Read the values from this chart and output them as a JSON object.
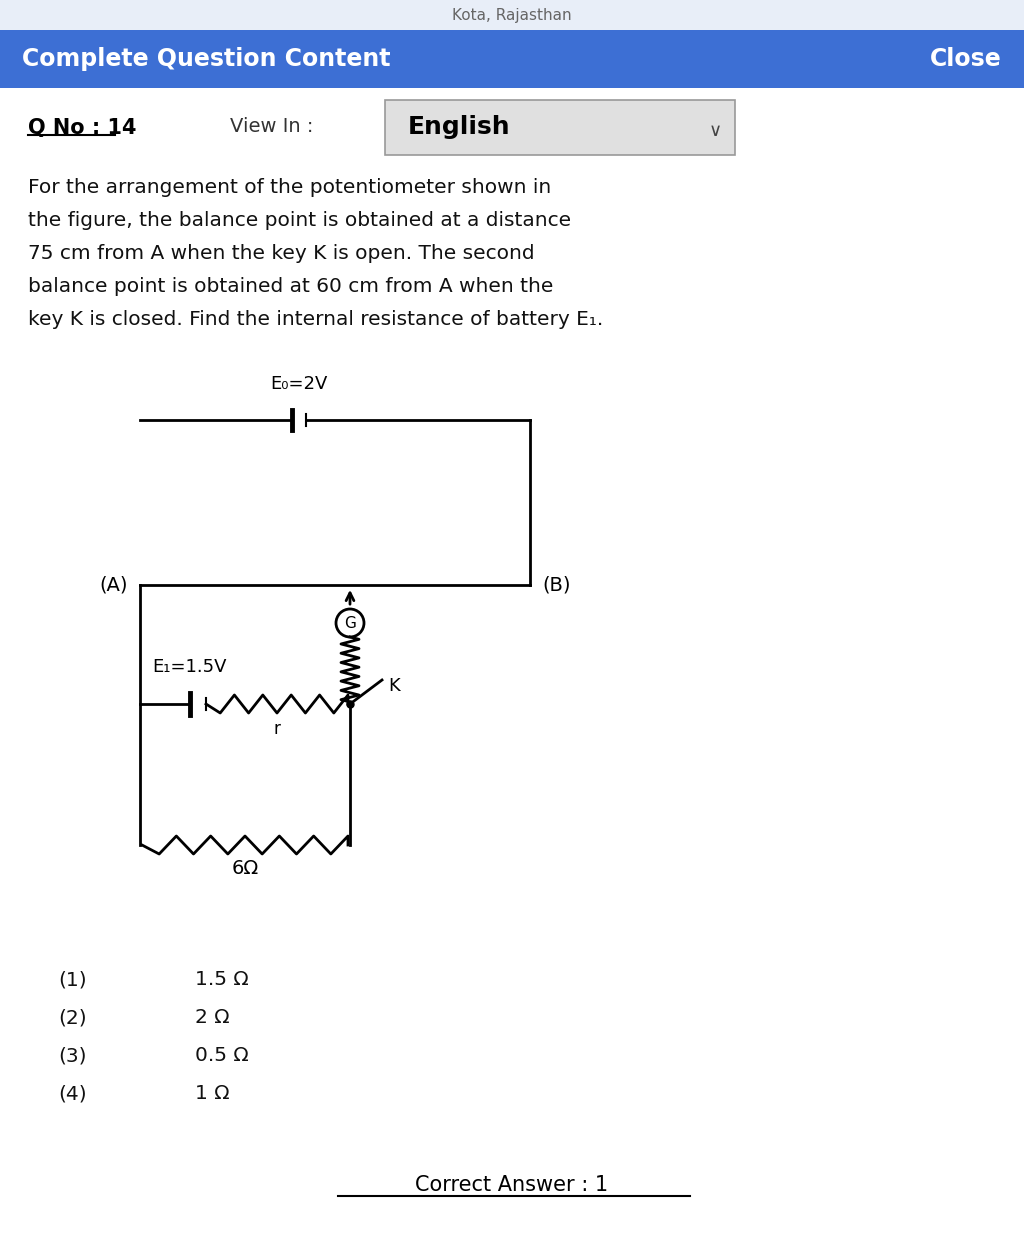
{
  "title_bar_text": "Complete Question Content",
  "close_text": "Close",
  "title_bar_color": "#3d6fd4",
  "title_bar_text_color": "#ffffff",
  "background_color": "#e8eef8",
  "content_background": "#ffffff",
  "q_no_text": "Q No : 14",
  "view_in_text": "View In :",
  "english_text": "English",
  "question_text": "For the arrangement of the potentiometer shown in\nthe figure, the balance point is obtained at a distance\n75 cm from A when the key K is open. The second\nbalance point is obtained at 60 cm from A when the\nkey K is closed. Find the internal resistance of battery E₁.",
  "e0_label": "E₀=2V",
  "e1_label": "E₁=1.5V",
  "r_label": "r",
  "k_label": "K",
  "g_label": "G",
  "six_ohm_label": "6Ω",
  "A_label": "(A)",
  "B_label": "(B)",
  "options": [
    {
      "num": "(1)",
      "val": "1.5 Ω"
    },
    {
      "num": "(2)",
      "val": "2 Ω"
    },
    {
      "num": "(3)",
      "val": "0.5 Ω"
    },
    {
      "num": "(4)",
      "val": "1 Ω"
    }
  ],
  "correct_answer_text": "Correct Answer : 1",
  "header_top_text": "Kota, Rajasthan"
}
